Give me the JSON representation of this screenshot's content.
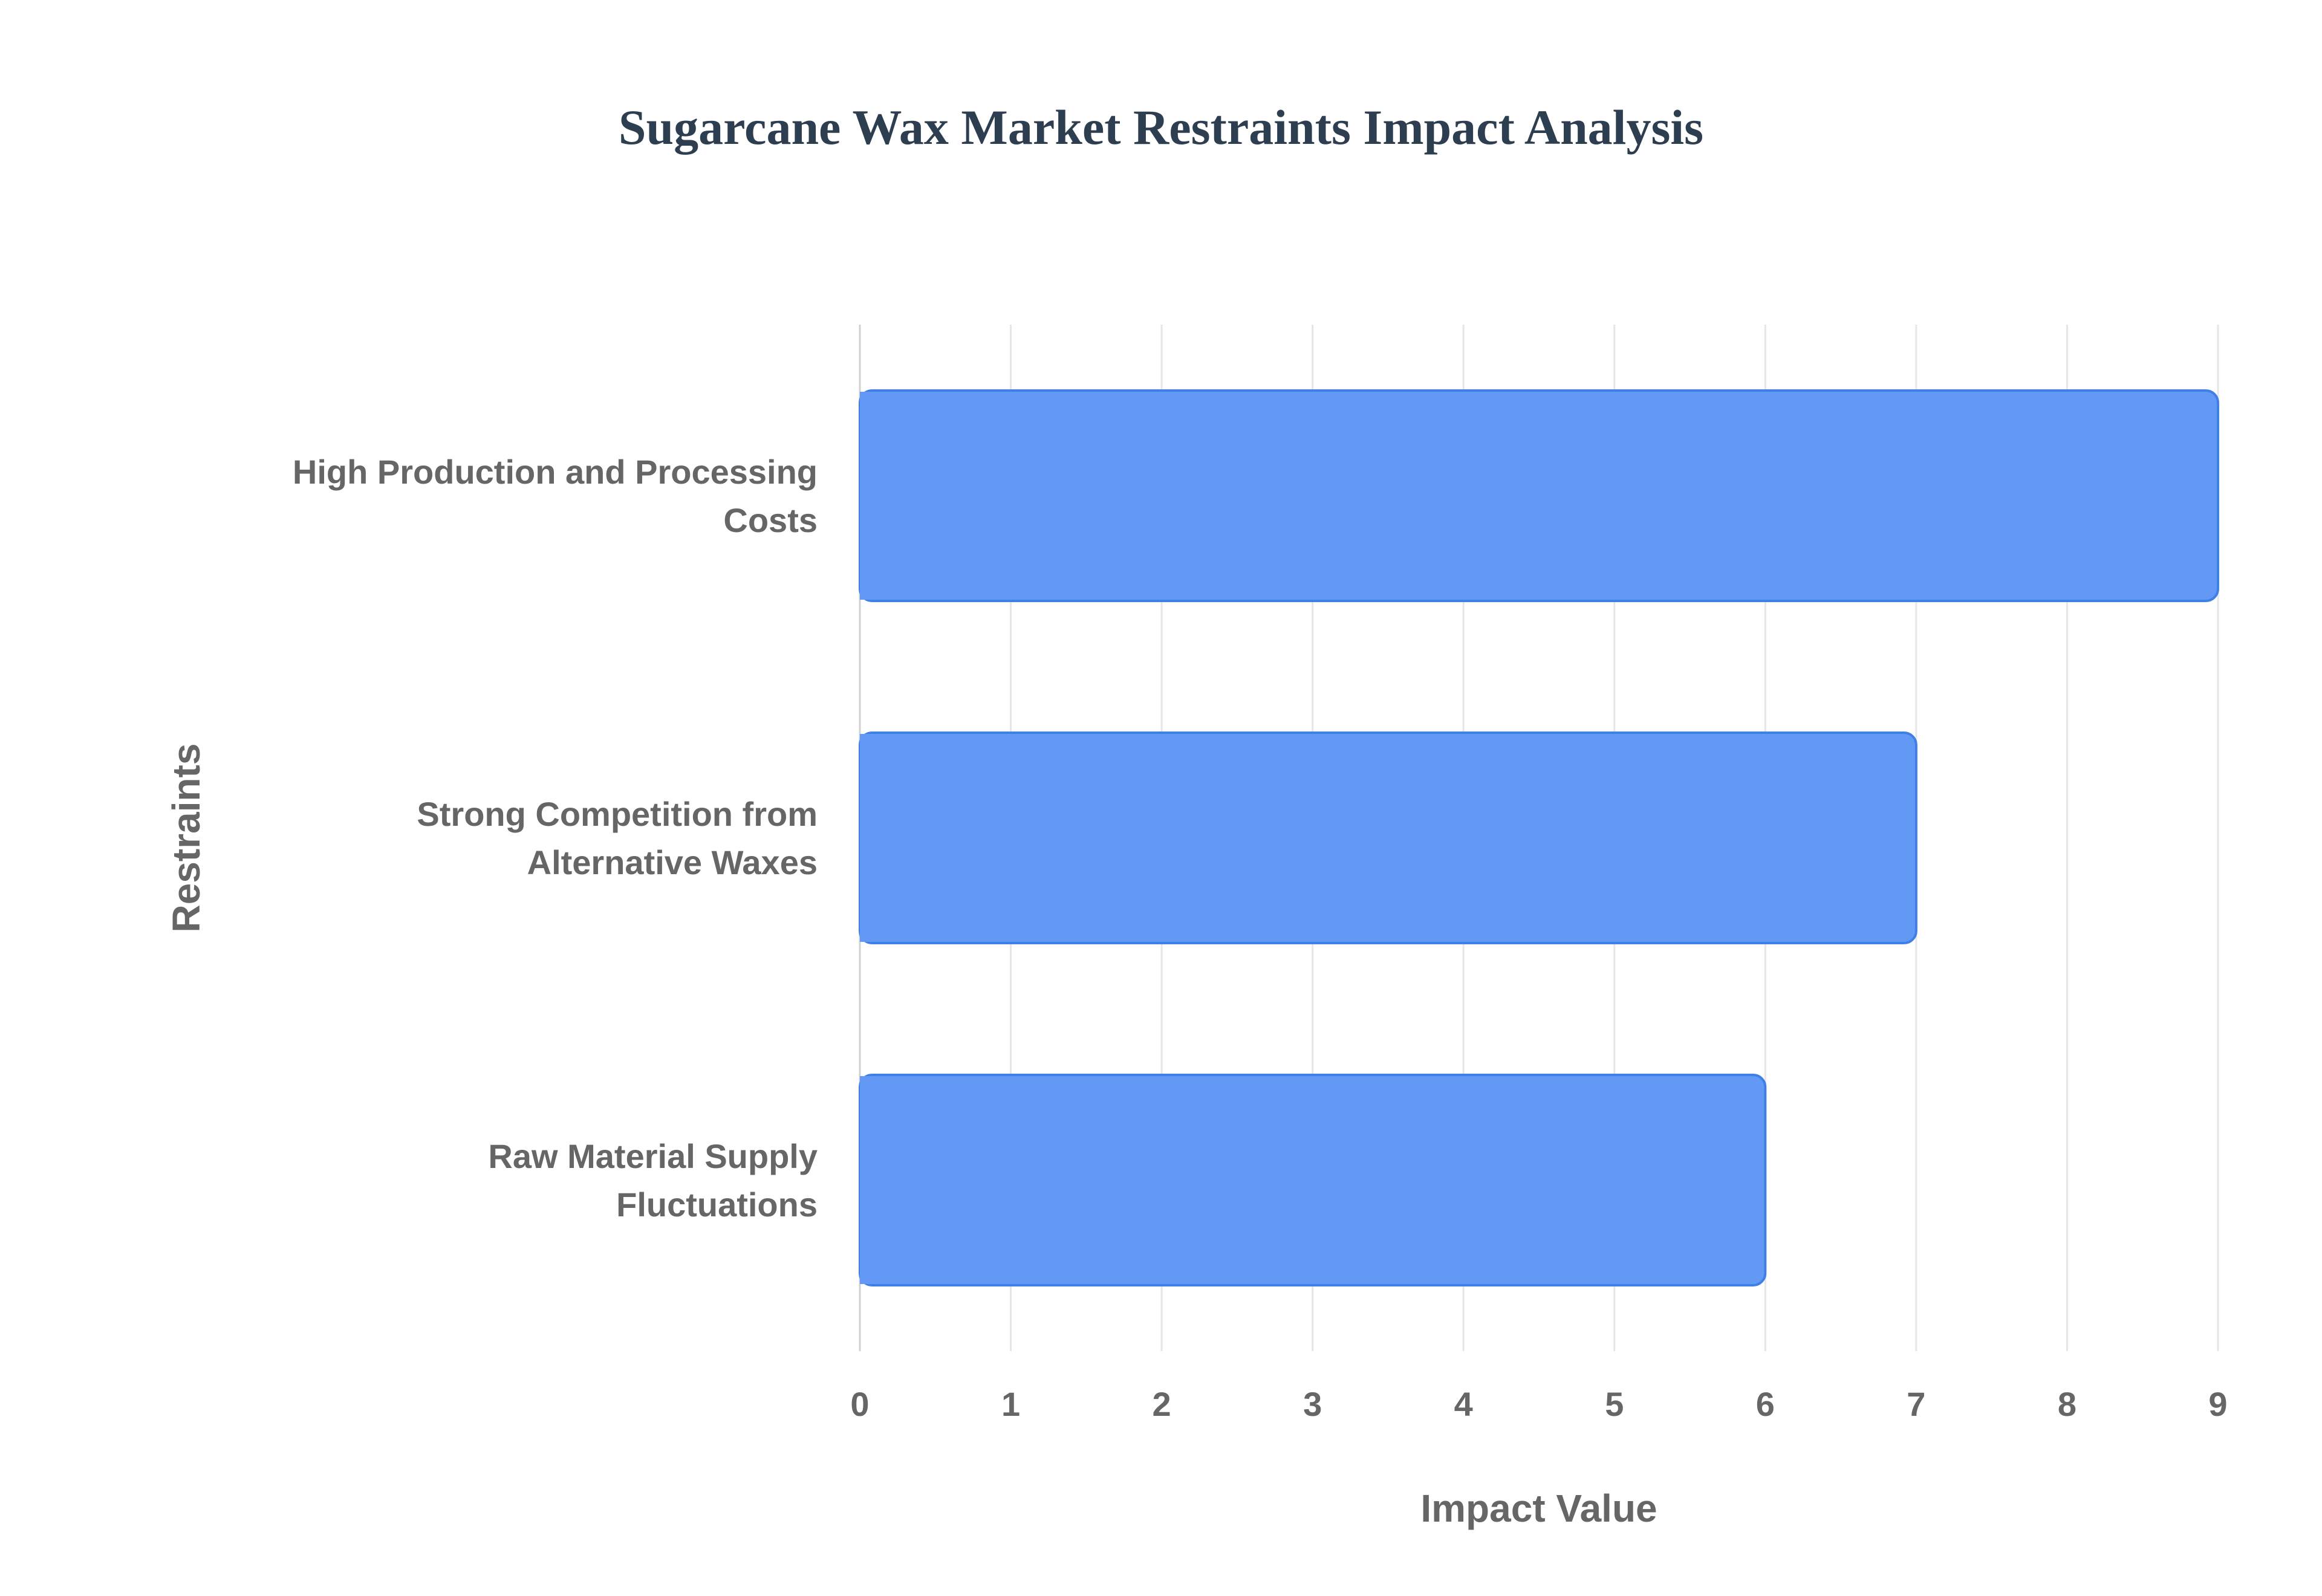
{
  "chart_data": {
    "type": "bar",
    "orientation": "horizontal",
    "title": "Sugarcane Wax Market Restraints Impact Analysis",
    "xlabel": "Impact Value",
    "ylabel": "Restraints",
    "categories": [
      [
        "High Production and Processing",
        "Costs"
      ],
      [
        "Strong Competition from",
        "Alternative Waxes"
      ],
      [
        "Raw Material Supply",
        "Fluctuations"
      ]
    ],
    "values": [
      9,
      7,
      6
    ],
    "xlim": [
      0,
      9
    ],
    "xticks": [
      "0",
      "1",
      "2",
      "3",
      "4",
      "5",
      "6",
      "7",
      "8",
      "9"
    ],
    "grid": true,
    "legend": "none",
    "colors": {
      "bar_fill": "#6199f5",
      "bar_stroke": "#3f7fe6",
      "grid": "#e6e6e6",
      "title": "#2c3e50",
      "text": "#666666"
    }
  }
}
